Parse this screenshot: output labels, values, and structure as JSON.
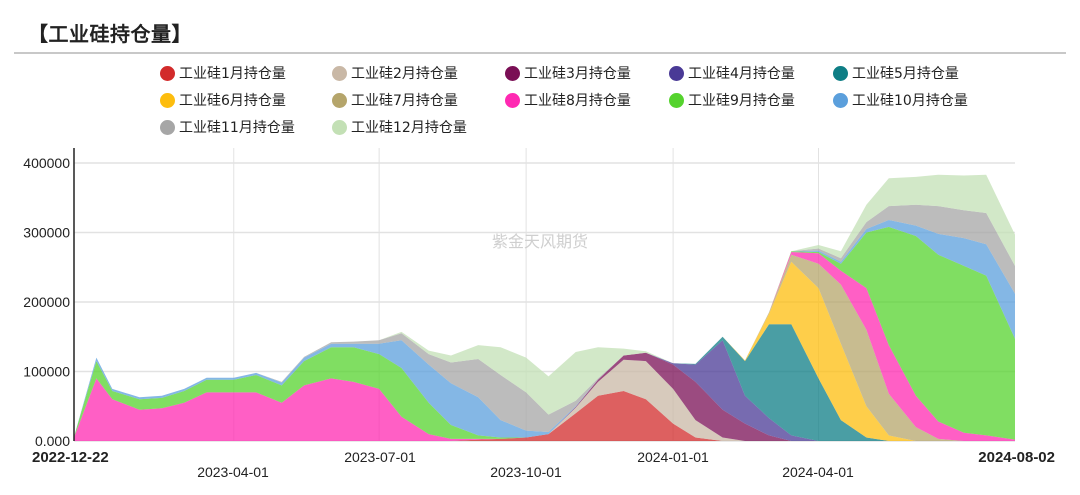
{
  "title": "【工业硅持仓量】",
  "watermark": "紫金天风期货",
  "legend": [
    {
      "label": "工业硅1月持仓量",
      "color": "#d22b2b"
    },
    {
      "label": "工业硅2月持仓量",
      "color": "#c9b8a6"
    },
    {
      "label": "工业硅3月持仓量",
      "color": "#7a0f55"
    },
    {
      "label": "工业硅4月持仓量",
      "color": "#4a3a96"
    },
    {
      "label": "工业硅5月持仓量",
      "color": "#0e7e85"
    },
    {
      "label": "工业硅6月持仓量",
      "color": "#fdbd0e"
    },
    {
      "label": "工业硅7月持仓量",
      "color": "#b5a56b"
    },
    {
      "label": "工业硅8月持仓量",
      "color": "#ff29b2"
    },
    {
      "label": "工业硅9月持仓量",
      "color": "#55d32e"
    },
    {
      "label": "工业硅10月持仓量",
      "color": "#5b9fdc"
    },
    {
      "label": "工业硅11月持仓量",
      "color": "#a6a6a6"
    },
    {
      "label": "工业硅12月持仓量",
      "color": "#c3e0b5"
    }
  ],
  "chart_data": {
    "type": "area",
    "stacked": true,
    "title": "【工业硅持仓量】",
    "xlabel": "",
    "ylabel": "",
    "ylim": [
      0,
      420000
    ],
    "yticks": [
      "0.000",
      "100000",
      "200000",
      "300000",
      "400000"
    ],
    "xticks": [
      {
        "label": "2022-12-22",
        "bold": true
      },
      {
        "label": "2023-04-01",
        "bold": false
      },
      {
        "label": "2023-07-01",
        "bold": false
      },
      {
        "label": "2023-10-01",
        "bold": false
      },
      {
        "label": "2024-01-01",
        "bold": false
      },
      {
        "label": "2024-04-01",
        "bold": false
      },
      {
        "label": "2024-08-02",
        "bold": true
      }
    ],
    "grid": true,
    "legend_position": "top",
    "x": [
      "2022-12-22",
      "2023-01-05",
      "2023-01-15",
      "2023-02-01",
      "2023-02-15",
      "2023-03-01",
      "2023-03-15",
      "2023-04-01",
      "2023-04-15",
      "2023-05-01",
      "2023-05-15",
      "2023-06-01",
      "2023-06-15",
      "2023-07-01",
      "2023-07-15",
      "2023-08-01",
      "2023-08-15",
      "2023-09-01",
      "2023-09-15",
      "2023-10-01",
      "2023-10-15",
      "2023-11-01",
      "2023-11-15",
      "2023-12-01",
      "2023-12-15",
      "2024-01-01",
      "2024-01-15",
      "2024-02-01",
      "2024-02-15",
      "2024-03-01",
      "2024-03-15",
      "2024-04-01",
      "2024-04-15",
      "2024-05-01",
      "2024-05-15",
      "2024-06-01",
      "2024-06-15",
      "2024-07-01",
      "2024-07-15",
      "2024-08-02"
    ],
    "series": [
      {
        "name": "工业硅1月持仓量",
        "values": [
          0,
          0,
          0,
          0,
          0,
          0,
          0,
          0,
          0,
          0,
          0,
          0,
          0,
          0,
          0,
          0,
          0,
          2000,
          3000,
          5000,
          10000,
          40000,
          65000,
          72000,
          60000,
          25000,
          5000,
          0,
          0,
          0,
          0,
          0,
          0,
          0,
          0,
          0,
          0,
          0,
          0,
          0
        ]
      },
      {
        "name": "工业硅2月持仓量",
        "values": [
          0,
          0,
          0,
          0,
          0,
          0,
          0,
          0,
          0,
          0,
          0,
          0,
          0,
          0,
          0,
          0,
          0,
          0,
          0,
          0,
          0,
          8000,
          20000,
          45000,
          55000,
          50000,
          25000,
          5000,
          0,
          0,
          0,
          0,
          0,
          0,
          0,
          0,
          0,
          0,
          0,
          0
        ]
      },
      {
        "name": "工业硅3月持仓量",
        "values": [
          0,
          0,
          0,
          0,
          0,
          0,
          0,
          0,
          0,
          0,
          0,
          0,
          0,
          0,
          0,
          0,
          0,
          0,
          0,
          0,
          0,
          1000,
          3000,
          6000,
          12000,
          35000,
          55000,
          40000,
          25000,
          8000,
          0,
          0,
          0,
          0,
          0,
          0,
          0,
          0,
          0,
          0
        ]
      },
      {
        "name": "工业硅4月持仓量",
        "values": [
          0,
          0,
          0,
          0,
          0,
          0,
          0,
          0,
          0,
          0,
          0,
          0,
          0,
          0,
          0,
          0,
          0,
          0,
          0,
          0,
          0,
          0,
          0,
          0,
          0,
          2000,
          25000,
          100000,
          40000,
          25000,
          8000,
          0,
          0,
          0,
          0,
          0,
          0,
          0,
          0,
          0
        ]
      },
      {
        "name": "工业硅5月持仓量",
        "values": [
          0,
          0,
          0,
          0,
          0,
          0,
          0,
          0,
          0,
          0,
          0,
          0,
          0,
          0,
          0,
          0,
          0,
          0,
          0,
          0,
          0,
          0,
          0,
          0,
          0,
          0,
          1000,
          5000,
          50000,
          135000,
          160000,
          90000,
          30000,
          5000,
          0,
          0,
          0,
          0,
          0,
          0
        ]
      },
      {
        "name": "工业硅6月持仓量",
        "values": [
          0,
          0,
          0,
          0,
          0,
          0,
          0,
          0,
          0,
          0,
          0,
          0,
          0,
          0,
          0,
          0,
          0,
          0,
          0,
          0,
          0,
          0,
          0,
          0,
          0,
          0,
          0,
          0,
          1000,
          15000,
          90000,
          130000,
          110000,
          45000,
          8000,
          0,
          0,
          0,
          0,
          0
        ]
      },
      {
        "name": "工业硅7月持仓量",
        "values": [
          0,
          0,
          0,
          0,
          0,
          0,
          0,
          0,
          0,
          0,
          0,
          0,
          0,
          0,
          0,
          0,
          0,
          0,
          0,
          0,
          0,
          0,
          0,
          0,
          0,
          0,
          0,
          0,
          0,
          2000,
          10000,
          35000,
          85000,
          110000,
          60000,
          20000,
          3000,
          0,
          0,
          0
        ]
      },
      {
        "name": "工业硅8月持仓量",
        "values": [
          5000,
          90000,
          60000,
          45000,
          47000,
          55000,
          70000,
          70000,
          70000,
          55000,
          80000,
          90000,
          85000,
          75000,
          35000,
          10000,
          3000,
          1000,
          0,
          0,
          0,
          0,
          0,
          0,
          0,
          0,
          0,
          0,
          0,
          0,
          4000,
          15000,
          20000,
          60000,
          70000,
          45000,
          25000,
          12000,
          8000,
          2000
        ]
      },
      {
        "name": "工业硅9月持仓量",
        "values": [
          1000,
          25000,
          12000,
          15000,
          15000,
          17000,
          18000,
          18000,
          25000,
          25000,
          35000,
          45000,
          50000,
          50000,
          70000,
          45000,
          20000,
          5000,
          2000,
          0,
          0,
          0,
          0,
          0,
          0,
          0,
          0,
          0,
          0,
          0,
          1000,
          2000,
          10000,
          80000,
          170000,
          230000,
          240000,
          240000,
          230000,
          145000
        ]
      },
      {
        "name": "工业硅10月持仓量",
        "values": [
          0,
          5000,
          3000,
          3000,
          3000,
          3000,
          3000,
          3000,
          3000,
          4000,
          5000,
          5000,
          5000,
          15000,
          40000,
          55000,
          60000,
          55000,
          25000,
          10000,
          3000,
          1000,
          0,
          0,
          0,
          0,
          0,
          0,
          0,
          0,
          0,
          2000,
          3000,
          5000,
          10000,
          15000,
          30000,
          40000,
          45000,
          65000
        ]
      },
      {
        "name": "工业硅11月持仓量",
        "values": [
          0,
          0,
          0,
          0,
          0,
          0,
          0,
          0,
          0,
          1000,
          1000,
          2000,
          3000,
          5000,
          10000,
          15000,
          30000,
          55000,
          65000,
          55000,
          25000,
          8000,
          2000,
          0,
          0,
          0,
          0,
          0,
          0,
          0,
          0,
          3000,
          5000,
          10000,
          20000,
          30000,
          40000,
          40000,
          45000,
          40000
        ]
      },
      {
        "name": "工业硅12月持仓量",
        "values": [
          0,
          0,
          0,
          0,
          0,
          0,
          0,
          0,
          0,
          0,
          0,
          0,
          0,
          0,
          2000,
          5000,
          10000,
          20000,
          40000,
          50000,
          55000,
          70000,
          45000,
          10000,
          2000,
          0,
          0,
          0,
          0,
          0,
          0,
          5000,
          10000,
          25000,
          40000,
          40000,
          45000,
          50000,
          55000,
          45000
        ]
      }
    ]
  }
}
